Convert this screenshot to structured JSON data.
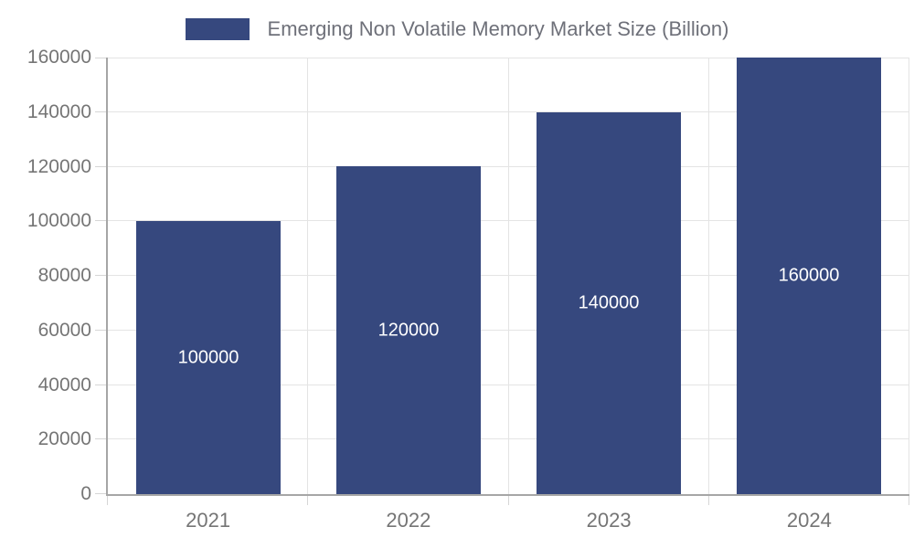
{
  "chart_data": {
    "type": "bar",
    "title": "Emerging Non Volatile Memory Market Size (Billion)",
    "categories": [
      "2021",
      "2022",
      "2023",
      "2024"
    ],
    "series": [
      {
        "name": "Emerging Non Volatile Memory Market Size (Billion)",
        "values": [
          100000,
          120000,
          140000,
          160000
        ]
      }
    ],
    "bar_value_labels": [
      "100000",
      "120000",
      "140000",
      "160000"
    ],
    "xlabel": "",
    "ylabel": "",
    "ylim": [
      0,
      160000
    ],
    "ytick_step": 20000,
    "ytick_labels": [
      "0",
      "20000",
      "40000",
      "60000",
      "80000",
      "100000",
      "120000",
      "140000",
      "160000"
    ],
    "grid": true,
    "legend_position": "top-center",
    "colors": {
      "bar": "#36487E",
      "bar_label_text": "#FFFFFF",
      "axis_tick_text": "#757575",
      "legend_text": "#6E7079",
      "axis_line": "#A6A6A6",
      "grid_line": "#E4E4E4",
      "tick_line": "#D6D6D6",
      "background": "#FFFFFF"
    }
  }
}
